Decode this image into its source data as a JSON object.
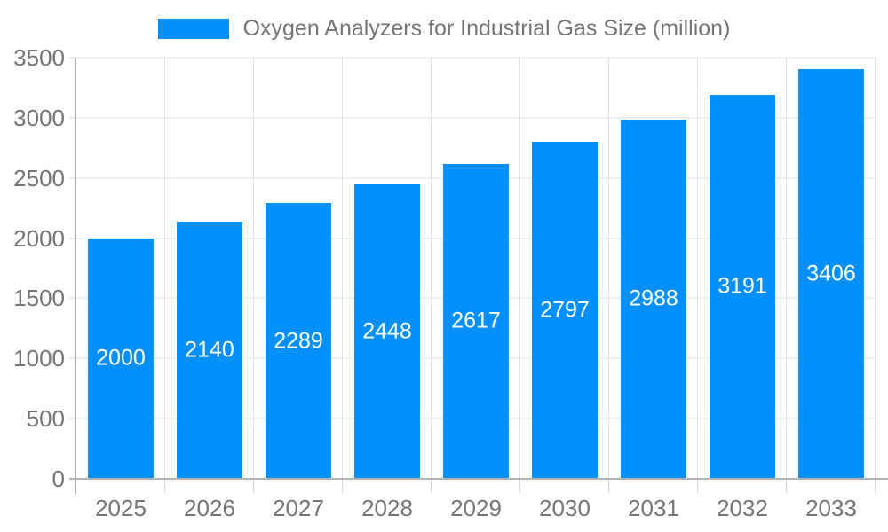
{
  "legend": {
    "label": "Oxygen Analyzers for Industrial Gas Size (million)",
    "swatch_color": "#0490F8"
  },
  "chart_data": {
    "type": "bar",
    "title": "Oxygen Analyzers for Industrial Gas Size (million)",
    "series_name": "Oxygen Analyzers for Industrial Gas Size (million)",
    "categories": [
      "2025",
      "2026",
      "2027",
      "2028",
      "2029",
      "2030",
      "2031",
      "2032",
      "2033"
    ],
    "values": [
      2000,
      2140,
      2289,
      2448,
      2617,
      2797,
      2988,
      3191,
      3406
    ],
    "xlabel": "",
    "ylabel": "",
    "ylim": [
      0,
      3500
    ],
    "yticks": [
      0,
      500,
      1000,
      1500,
      2000,
      2500,
      3000,
      3500
    ],
    "grid": true,
    "legend_position": "top-center",
    "bar_color": "#0490F8",
    "bar_value_label_color": "#FFFFFF",
    "axis_text_color": "#757575",
    "gridline_color": "#E2E2E2",
    "axis_line_color": "#B2B2B2"
  }
}
